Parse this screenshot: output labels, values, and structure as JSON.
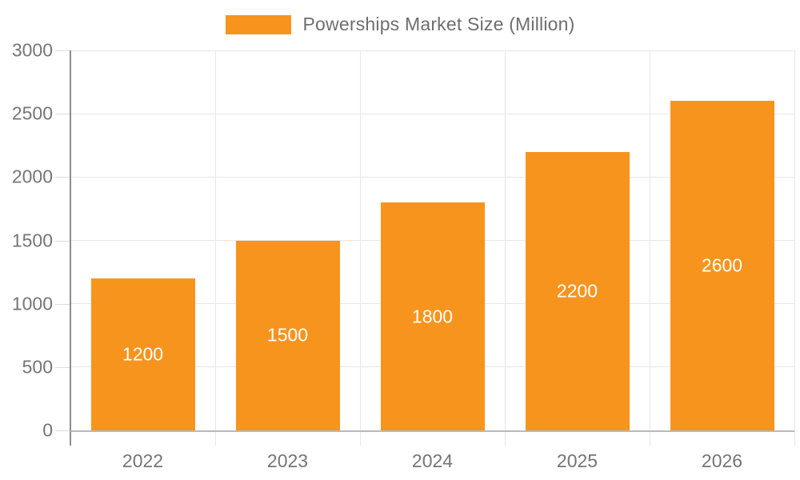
{
  "legend": {
    "label": "Powerships Market Size (Million)"
  },
  "chart_data": {
    "type": "bar",
    "title": "Powerships Market Size (Million)",
    "categories": [
      "2022",
      "2023",
      "2024",
      "2025",
      "2026"
    ],
    "values": [
      1200,
      1500,
      1800,
      2200,
      2600
    ],
    "series": [
      {
        "name": "Powerships Market Size (Million)",
        "values": [
          1200,
          1500,
          1800,
          2200,
          2600
        ]
      }
    ],
    "xlabel": "",
    "ylabel": "",
    "ylim": [
      0,
      3000
    ],
    "yticks": [
      0,
      500,
      1000,
      1500,
      2000,
      2500,
      3000
    ],
    "grid": true,
    "legend_position": "top-center",
    "bar_labels_shown": true,
    "bar_label_position": "center",
    "colors": {
      "bar": "#f7941e",
      "bar_label": "#ffffff",
      "axis_text": "#757575",
      "legend_text": "#6e6e6e",
      "gridline": "#e7e7e7",
      "axis_line": "#8c8c8c",
      "baseline": "#b9b9b9",
      "tick": "#dcdcdc"
    }
  }
}
